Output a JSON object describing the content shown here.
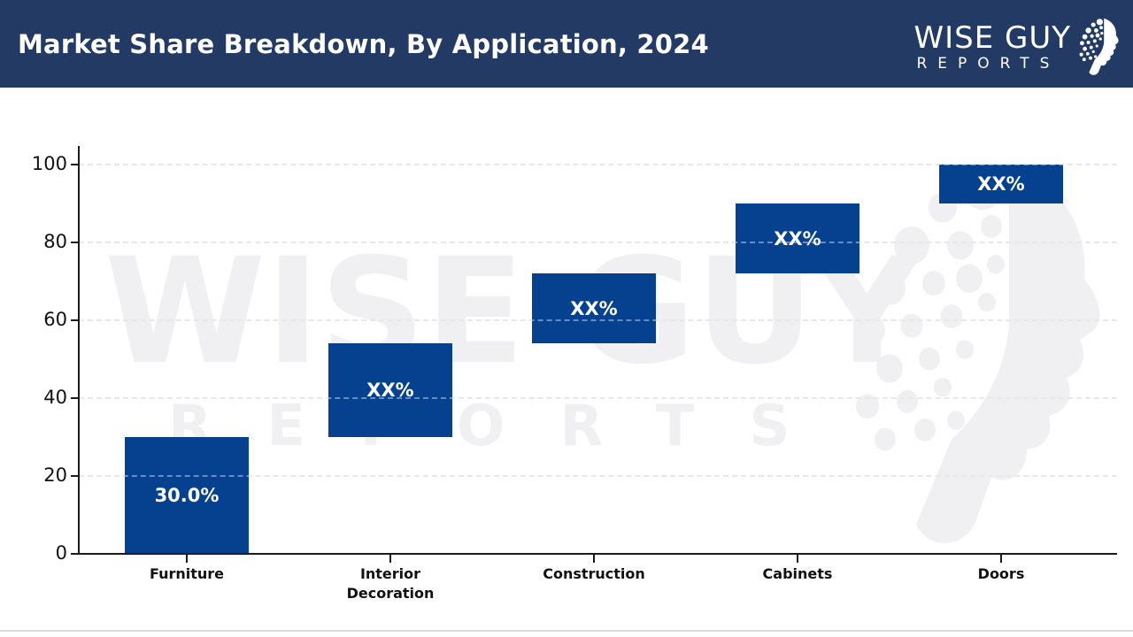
{
  "header": {
    "title": "Market Share Breakdown, By Application, 2024",
    "logo": {
      "line1": "WISE GUY",
      "line2": "REPORTS"
    }
  },
  "watermark": {
    "line1": "WISE GUY",
    "line2": "REPORTS"
  },
  "colors": {
    "header_bg": "#223A64",
    "bar": "#05418F",
    "bar_label": "#FFFFFF",
    "grid": "#D9D9D9",
    "axis": "#1A1A1A",
    "tick_text": "#111111",
    "watermark": "#F0F0F2",
    "title_text": "#FFFFFF"
  },
  "chart_data": {
    "type": "bar",
    "subtype": "waterfall",
    "title": "Market Share Breakdown, By Application, 2024",
    "xlabel": "",
    "ylabel": "",
    "ylim": [
      0,
      105
    ],
    "grid": true,
    "gridline_style": "dashed",
    "yticks": [
      0,
      20,
      40,
      60,
      80,
      100
    ],
    "categories": [
      "Furniture",
      "Interior Decoration",
      "Construction",
      "Cabinets",
      "Doors"
    ],
    "segments": [
      {
        "category": "Furniture",
        "start": 0,
        "end": 30,
        "label": "30.0%"
      },
      {
        "category": "Interior Decoration",
        "start": 30,
        "end": 54,
        "label": "XX%"
      },
      {
        "category": "Construction",
        "start": 54,
        "end": 72,
        "label": "XX%"
      },
      {
        "category": "Cabinets",
        "start": 72,
        "end": 90,
        "label": "XX%"
      },
      {
        "category": "Doors",
        "start": 90,
        "end": 100,
        "label": "XX%"
      }
    ]
  }
}
